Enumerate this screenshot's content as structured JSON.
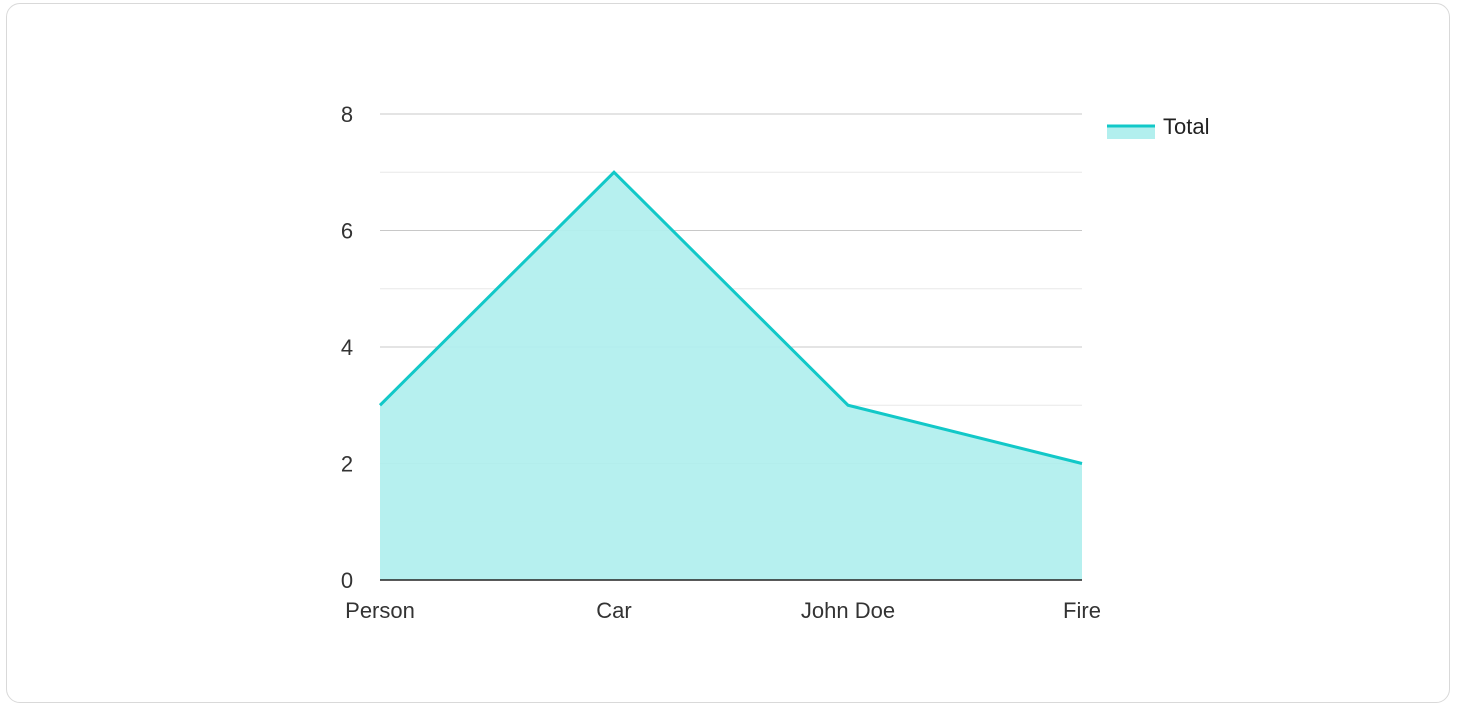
{
  "chart_data": {
    "type": "area",
    "categories": [
      "Person",
      "Car",
      "John Doe",
      "Fire"
    ],
    "series": [
      {
        "name": "Total",
        "values": [
          3,
          7,
          3,
          2
        ]
      }
    ],
    "ylim": [
      0,
      8
    ],
    "y_ticks": [
      "0",
      "2",
      "4",
      "6",
      "8"
    ],
    "title": "",
    "xlabel": "",
    "ylabel": "",
    "grid": true,
    "legend_position": "top-right",
    "colors": {
      "line": "#12c8c8",
      "fill": "#b2efee",
      "grid_major": "#c8c8c8",
      "grid_minor": "#e8e8e8",
      "axis": "#222222"
    }
  }
}
